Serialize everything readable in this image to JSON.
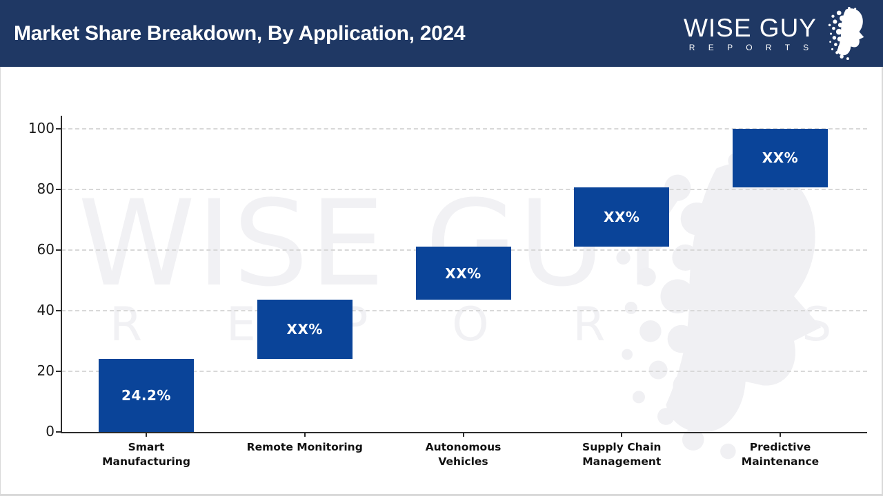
{
  "header": {
    "title": "Market Share Breakdown, By Application, 2024",
    "bg_color": "#1f3864",
    "brand": {
      "name": "WISE GUY",
      "sub": "R E P O R T S"
    }
  },
  "watermark": {
    "line1": "WISE GUY",
    "line2": "R E P O R T S"
  },
  "chart_data": {
    "type": "bar",
    "subtype": "waterfall",
    "title": "Market Share Breakdown, By Application, 2024",
    "xlabel": "",
    "ylabel": "",
    "legend": "none",
    "grid": "horizontal-dashed",
    "bar_color": "#0a4499",
    "bar_label_color": "#ffffff",
    "ylim": [
      0,
      104
    ],
    "yticks": [
      0,
      20,
      40,
      60,
      80,
      100
    ],
    "categories": [
      "Smart Manufacturing",
      "Remote Monitoring",
      "Autonomous Vehicles",
      "Supply Chain Management",
      "Predictive Maintenance"
    ],
    "category_lines": [
      [
        "Smart",
        "Manufacturing"
      ],
      [
        "Remote Monitoring"
      ],
      [
        "Autonomous",
        "Vehicles"
      ],
      [
        "Supply Chain",
        "Management"
      ],
      [
        "Predictive",
        "Maintenance"
      ]
    ],
    "segments": [
      {
        "category": "Smart Manufacturing",
        "start": 0,
        "end": 24.2,
        "label": "24.2%"
      },
      {
        "category": "Remote Monitoring",
        "start": 24.2,
        "end": 43.6,
        "label": "XX%"
      },
      {
        "category": "Autonomous Vehicles",
        "start": 43.6,
        "end": 61.1,
        "label": "XX%"
      },
      {
        "category": "Supply Chain Management",
        "start": 61.1,
        "end": 80.7,
        "label": "XX%"
      },
      {
        "category": "Predictive Maintenance",
        "start": 80.7,
        "end": 100,
        "label": "XX%"
      }
    ]
  }
}
